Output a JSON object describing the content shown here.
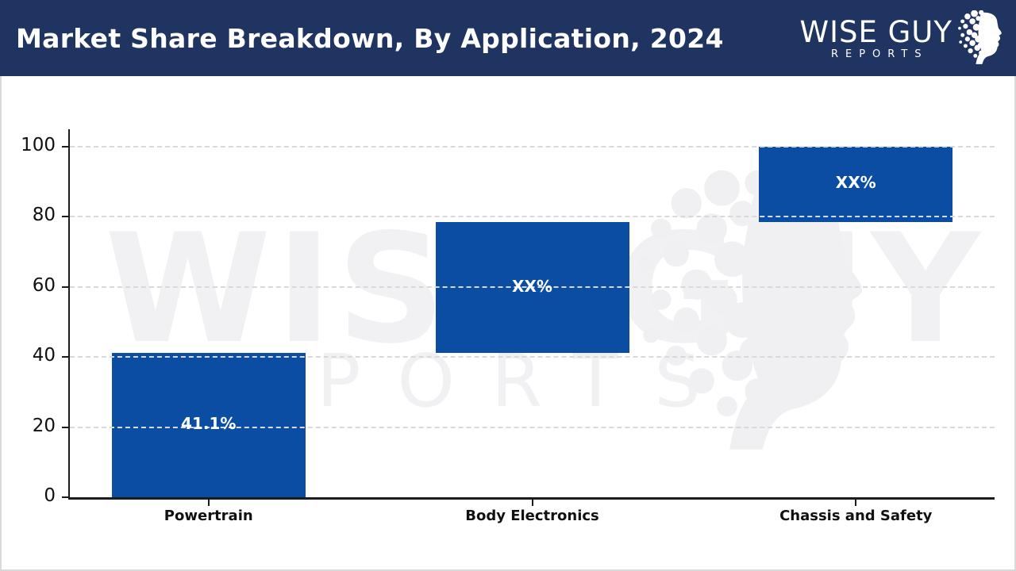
{
  "header": {
    "title": "Market Share Breakdown, By Application, 2024",
    "logo": {
      "line1": "WISE GUY",
      "line2": "REPORTS"
    }
  },
  "watermark": {
    "line1": "WISE GUY",
    "line2": "REPORTS"
  },
  "chart_data": {
    "type": "bar",
    "subtype": "waterfall",
    "title": "Market Share Breakdown, By Application, 2024",
    "categories": [
      "Powertrain",
      "Body Electronics",
      "Chassis and Safety"
    ],
    "segments": [
      {
        "category": "Powertrain",
        "start": 0,
        "end": 41.1,
        "label": "41.1%"
      },
      {
        "category": "Body Electronics",
        "start": 41.1,
        "end": 78.6,
        "label": "XX%"
      },
      {
        "category": "Chassis and Safety",
        "start": 78.6,
        "end": 100,
        "label": "XX%"
      }
    ],
    "yticks": [
      0,
      20,
      40,
      60,
      80,
      100
    ],
    "ylim": [
      0,
      105
    ],
    "xlabel": "",
    "ylabel": "",
    "grid": "horizontal-dashed",
    "legend": "none",
    "bar_color": "#0b4da2",
    "label_color": "#ffffff",
    "axis_color": "#1c1c1c",
    "grid_color": "#d9d9d9"
  }
}
